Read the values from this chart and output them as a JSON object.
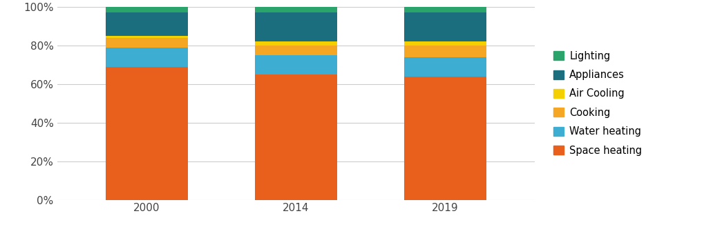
{
  "categories": [
    "2000",
    "2014",
    "2019"
  ],
  "series": [
    {
      "label": "Space heating",
      "color": "#E8601C",
      "values": [
        69,
        65,
        64
      ]
    },
    {
      "label": "Water heating",
      "color": "#3DAED2",
      "values": [
        10,
        10,
        10
      ]
    },
    {
      "label": "Cooking",
      "color": "#F5A623",
      "values": [
        5,
        5,
        6
      ]
    },
    {
      "label": "Air Cooling",
      "color": "#F5D000",
      "values": [
        1,
        2,
        2
      ]
    },
    {
      "label": "Appliances",
      "color": "#1A6E7E",
      "values": [
        12,
        15,
        15
      ]
    },
    {
      "label": "Lighting",
      "color": "#2BA46B",
      "values": [
        3,
        3,
        3
      ]
    }
  ],
  "ylim": [
    0,
    100
  ],
  "yticks": [
    0,
    20,
    40,
    60,
    80,
    100
  ],
  "ytick_labels": [
    "0%",
    "20%",
    "40%",
    "60%",
    "80%",
    "100%"
  ],
  "background_color": "#ffffff",
  "grid_color": "#cccccc",
  "bar_width": 0.55,
  "legend_fontsize": 10.5,
  "tick_fontsize": 11,
  "legend_order": [
    "Lighting",
    "Appliances",
    "Air Cooling",
    "Cooking",
    "Water heating",
    "Space heating"
  ]
}
